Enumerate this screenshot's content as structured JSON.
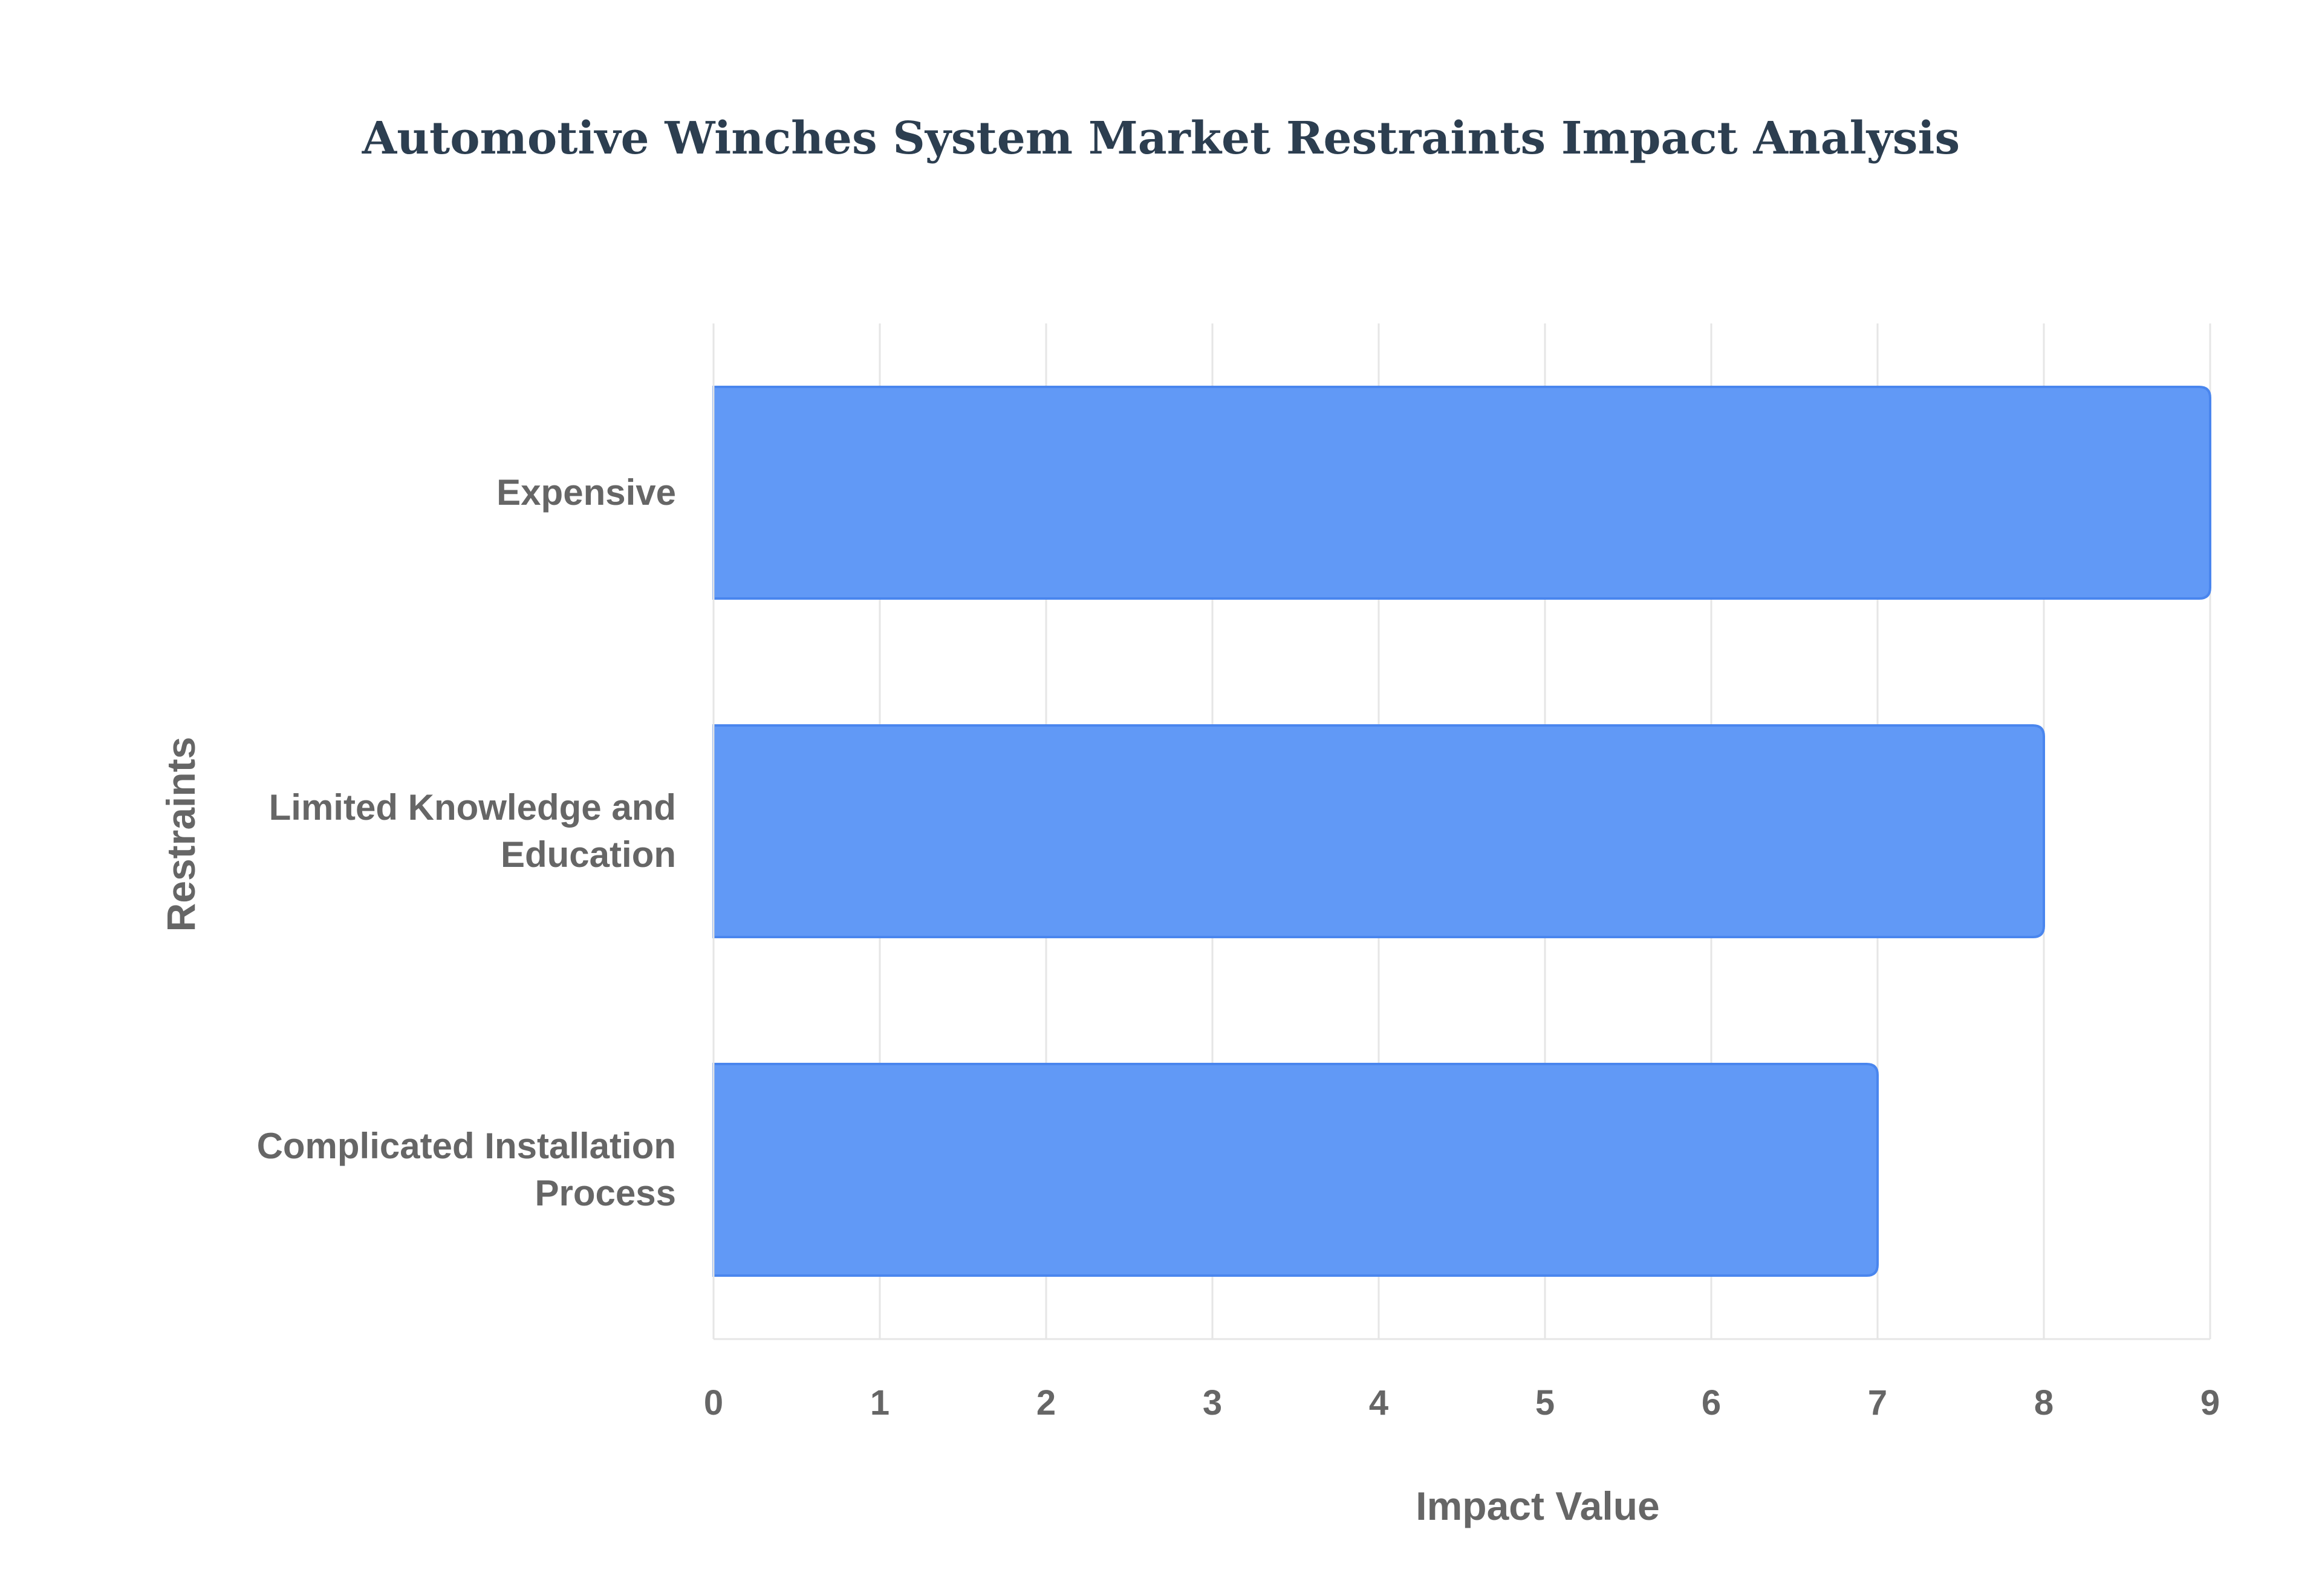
{
  "chart_data": {
    "type": "bar",
    "orientation": "horizontal",
    "title": "Automotive Winches System Market Restraints Impact Analysis",
    "xlabel": "Impact Value",
    "ylabel": "Restraints",
    "categories": [
      [
        "Expensive"
      ],
      [
        "Limited Knowledge and",
        "Education"
      ],
      [
        "Complicated Installation",
        "Process"
      ]
    ],
    "values": [
      9,
      8,
      7
    ],
    "xlim": [
      0,
      9
    ],
    "xticks": [
      "0",
      "1",
      "2",
      "3",
      "4",
      "5",
      "6",
      "7",
      "8",
      "9"
    ],
    "grid": true,
    "legend": "none",
    "colors": {
      "bar_fill": "#6199f6",
      "bar_stroke": "#4a86ee",
      "grid": "#e6e6e6",
      "text": "#666666",
      "title": "#2c3e50"
    }
  }
}
